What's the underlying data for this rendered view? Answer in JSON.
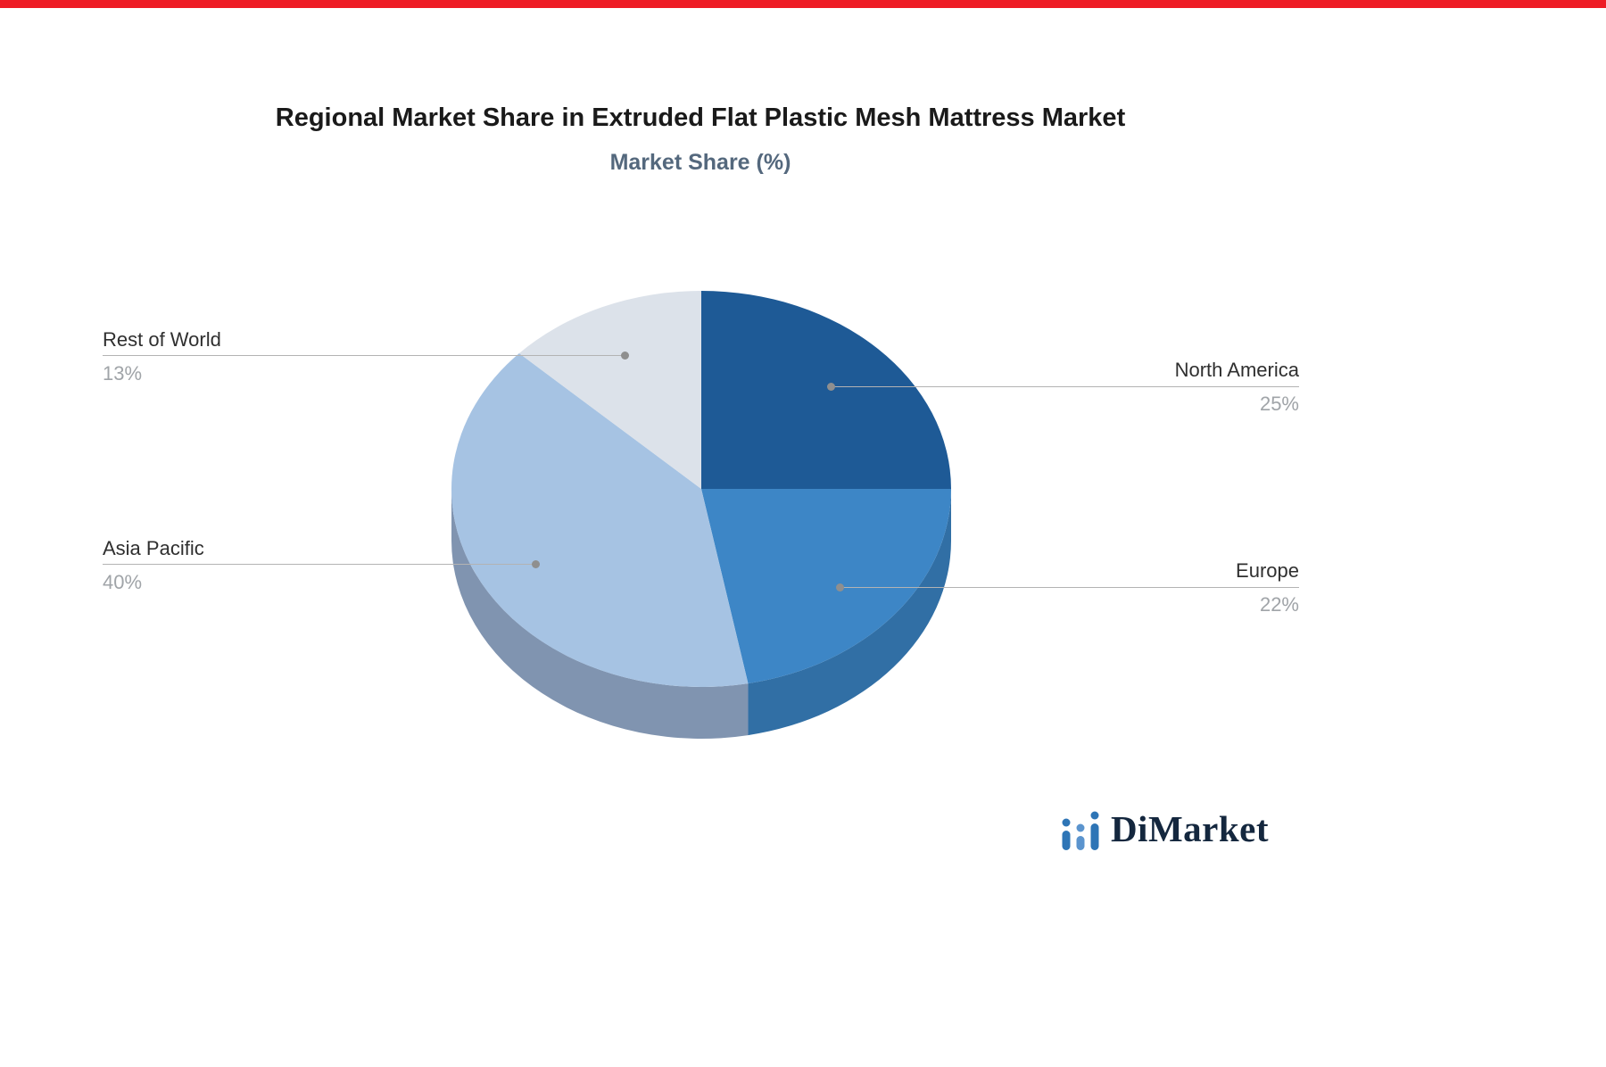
{
  "page": {
    "top_border_color": "#ee1c25"
  },
  "chart_data": {
    "type": "pie",
    "title": "Regional Market Share in Extruded Flat Plastic Mesh Mattress Market",
    "subtitle": "Market Share (%)",
    "unit": "%",
    "effect": "3d",
    "direction": "clockwise",
    "start_angle_deg": 0,
    "legend": "none, outside labels with leader lines",
    "categories": [
      "North America",
      "Europe",
      "Asia Pacific",
      "Rest of World"
    ],
    "values": [
      25,
      22,
      40,
      13
    ],
    "colors": [
      "#1e5a96",
      "#3d86c6",
      "#a6c3e3",
      "#dce2ea"
    ],
    "depth_colors": [
      "#16456f",
      "#316fa5",
      "#8094b0",
      "#b6bfcb"
    ],
    "labels": [
      {
        "name": "North America",
        "pct": "25%"
      },
      {
        "name": "Europe",
        "pct": "22%"
      },
      {
        "name": "Asia Pacific",
        "pct": "40%"
      },
      {
        "name": "Rest of World",
        "pct": "13%"
      }
    ]
  },
  "branding": {
    "logo_text": "DiMarket",
    "logo_color": "#2e75b6"
  }
}
